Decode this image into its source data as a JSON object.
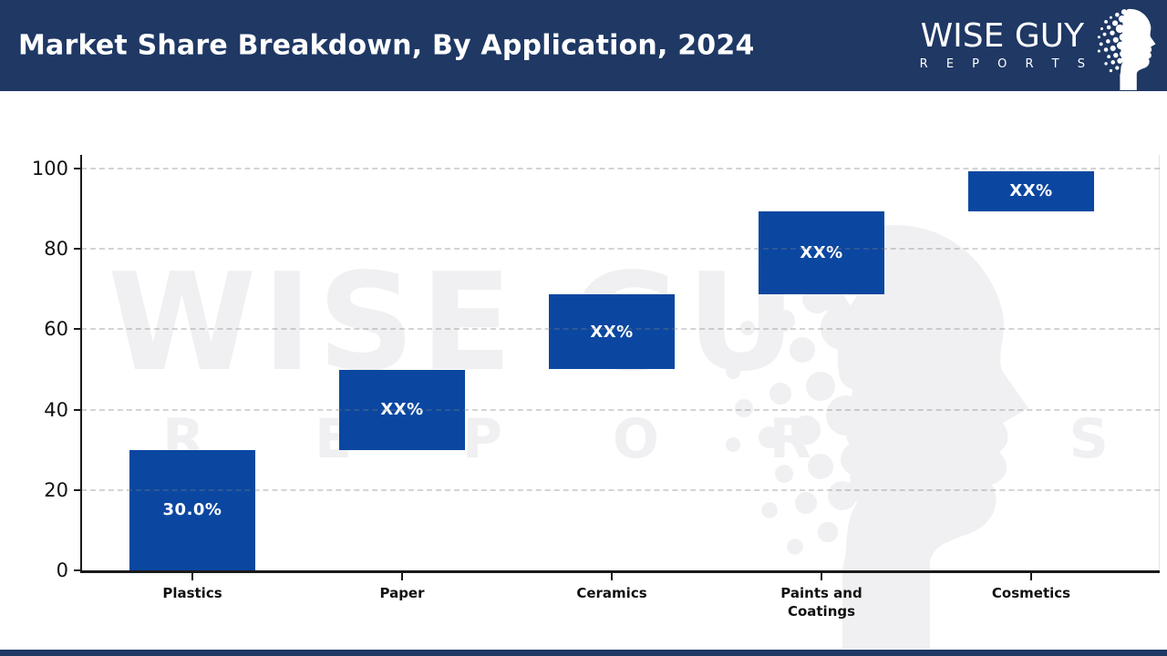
{
  "header": {
    "title": "Market Share Breakdown, By Application, 2024",
    "logo": {
      "line1": "WISE GUY",
      "line2": "R E P O R T S"
    }
  },
  "watermark": {
    "line1": "WISE GUY",
    "line2": "R E P O R T S"
  },
  "colors": {
    "header_bg": "#1f3864",
    "footer_bg": "#1f3864",
    "bar": "#0b47a1",
    "bar_label_text": "#ffffff",
    "axis": "#1a1a1a",
    "tick_label": "#111111",
    "gridline": "#d6d6d6",
    "watermark": "#f0f0f2",
    "title_text": "#ffffff"
  },
  "chart_data": {
    "type": "bar",
    "subtype": "waterfall",
    "title": "Market Share Breakdown, By Application, 2024",
    "xlabel": "",
    "ylabel": "",
    "ylim": [
      0,
      100
    ],
    "y_ticks": [
      0,
      20,
      40,
      60,
      80,
      100
    ],
    "grid": "horizontal dashed, drawn above bars",
    "legend": "none",
    "categories": [
      "Plastics",
      "Paper",
      "Ceramics",
      "Paints and Coatings",
      "Cosmetics"
    ],
    "segments": [
      {
        "category": "Plastics",
        "start": 0,
        "end": 30,
        "value": 30,
        "label": "30.0%"
      },
      {
        "category": "Paper",
        "start": 30,
        "end": 50,
        "value": 20,
        "label": "XX%"
      },
      {
        "category": "Ceramics",
        "start": 50,
        "end": 68.6,
        "value": 18.6,
        "label": "XX%"
      },
      {
        "category": "Paints and Coatings",
        "start": 68.6,
        "end": 89.4,
        "value": 20.8,
        "label": "XX%"
      },
      {
        "category": "Cosmetics",
        "start": 89.4,
        "end": 99.4,
        "value": 10,
        "label": "XX%"
      }
    ]
  }
}
